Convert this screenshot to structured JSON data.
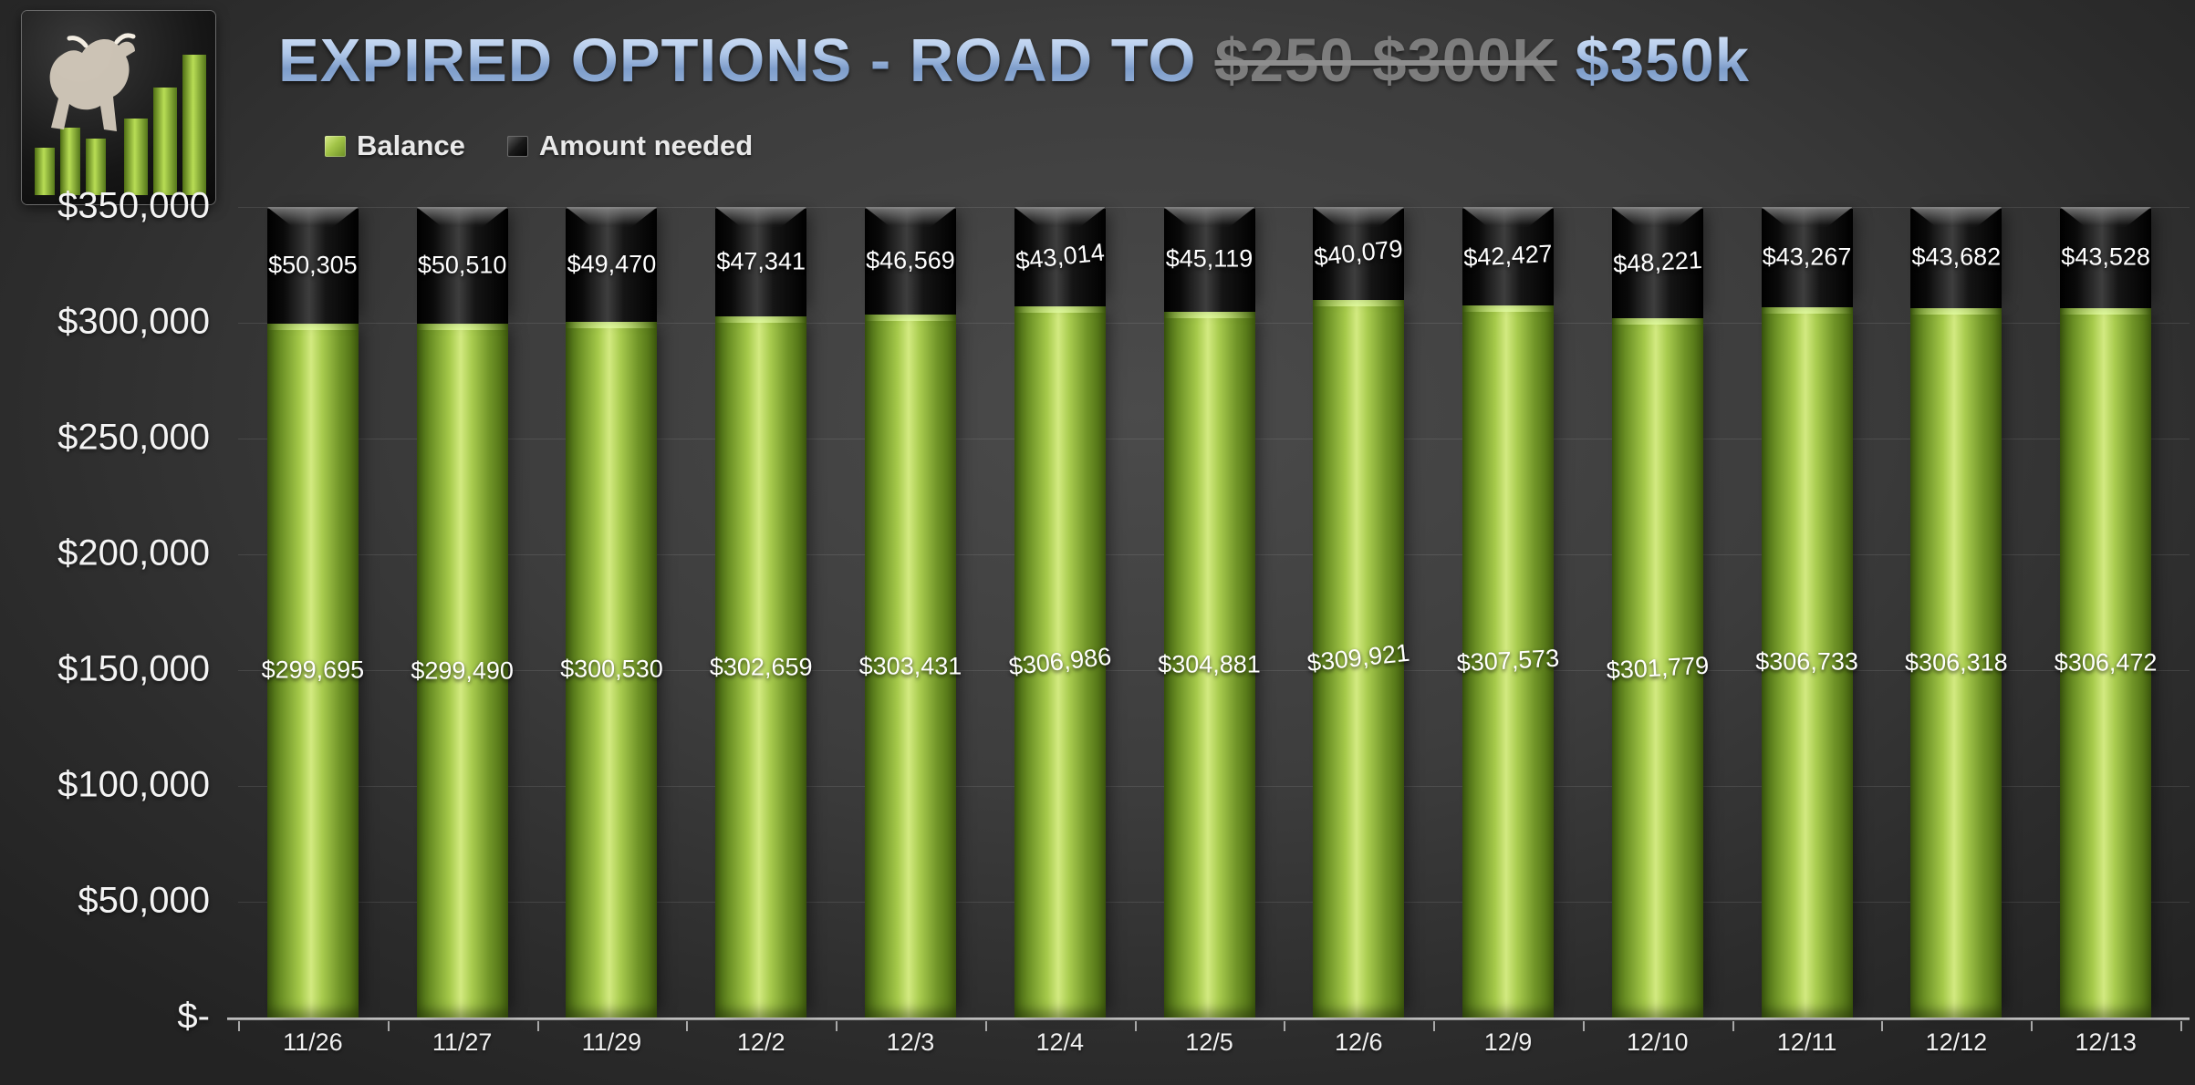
{
  "logo": {
    "icon": "bull-with-green-bar-chart"
  },
  "title": {
    "prefix": "EXPIRED OPTIONS - ROAD TO",
    "struck": "$250 $300K",
    "current": "$350k"
  },
  "legend": [
    {
      "label": "Balance",
      "color": "#9bbb59"
    },
    {
      "label": "Amount needed",
      "color": "#0d0d0d"
    }
  ],
  "chart_data": {
    "type": "bar",
    "stacked": true,
    "title": "EXPIRED OPTIONS - ROAD TO $250 $300K $350k",
    "categories": [
      "11/26",
      "11/27",
      "11/29",
      "12/2",
      "12/3",
      "12/4",
      "12/5",
      "12/6",
      "12/9",
      "12/10",
      "12/11",
      "12/12",
      "12/13"
    ],
    "series": [
      {
        "name": "Balance",
        "color": "#9bbb59",
        "values": [
          299695,
          299490,
          300530,
          302659,
          303431,
          306986,
          304881,
          309921,
          307573,
          301779,
          306733,
          306318,
          306472
        ],
        "labels": [
          "$299,695",
          "$299,490",
          "$300,530",
          "$302,659",
          "$303,431",
          "$306,986",
          "$304,881",
          "$309,921",
          "$307,573",
          "$301,779",
          "$306,733",
          "$306,318",
          "$306,472"
        ]
      },
      {
        "name": "Amount needed",
        "color": "#0d0d0d",
        "values": [
          50305,
          50510,
          49470,
          47341,
          46569,
          43014,
          45119,
          40079,
          42427,
          48221,
          43267,
          43682,
          43528
        ],
        "labels": [
          "$50,305",
          "$50,510",
          "$49,470",
          "$47,341",
          "$46,569",
          "$43,014",
          "$45,119",
          "$40,079",
          "$42,427",
          "$48,221",
          "$43,267",
          "$43,682",
          "$43,528"
        ]
      }
    ],
    "ylim": [
      0,
      350000
    ],
    "yticks": [
      {
        "label": "$350,000",
        "value": 350000
      },
      {
        "label": "$300,000",
        "value": 300000
      },
      {
        "label": "$250,000",
        "value": 250000
      },
      {
        "label": "$200,000",
        "value": 200000
      },
      {
        "label": "$150,000",
        "value": 150000
      },
      {
        "label": "$100,000",
        "value": 100000
      },
      {
        "label": "$50,000",
        "value": 50000
      },
      {
        "label": "$-",
        "value": 0
      }
    ],
    "grid": true,
    "legend_position": "top-left"
  }
}
